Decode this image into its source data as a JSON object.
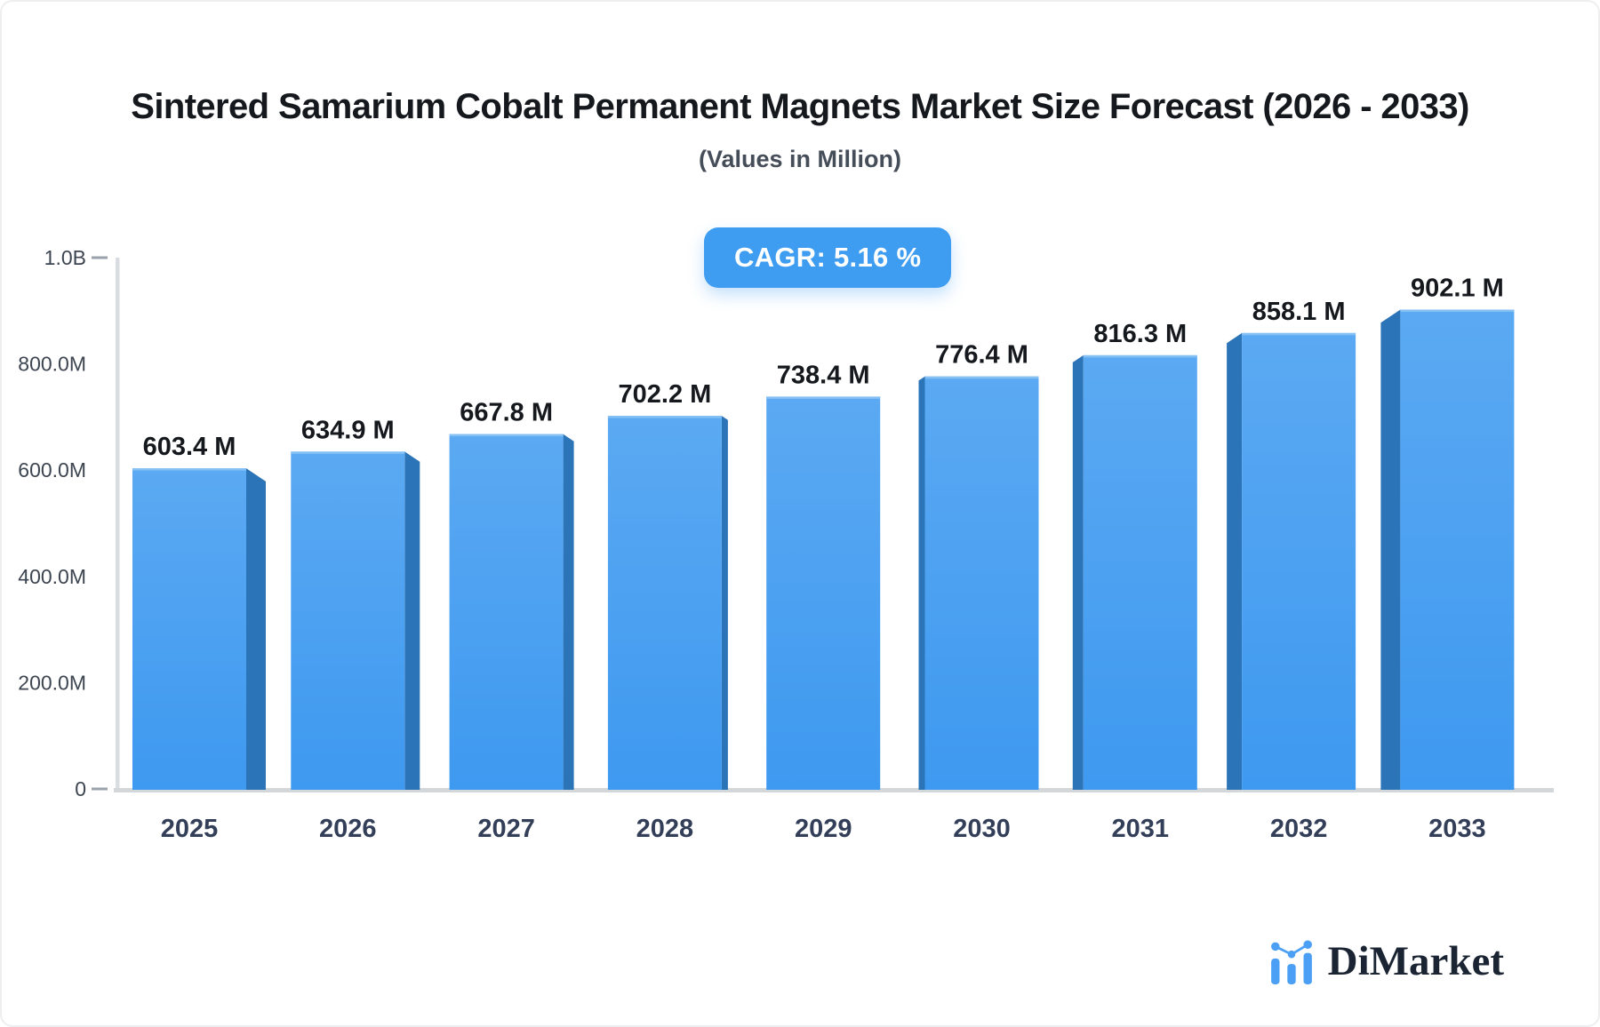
{
  "header": {
    "title": "Sintered Samarium Cobalt Permanent Magnets Market Size Forecast (2026 - 2033)",
    "subtitle": "(Values in Million)"
  },
  "chart_data": {
    "type": "bar",
    "title": "Sintered Samarium Cobalt Permanent Magnets Market Size Forecast (2026 - 2033)",
    "subtitle": "(Values in Million)",
    "cagr_badge": "CAGR: 5.16 %",
    "categories": [
      "2025",
      "2026",
      "2027",
      "2028",
      "2029",
      "2030",
      "2031",
      "2032",
      "2033"
    ],
    "values_millions": [
      603.4,
      634.9,
      667.8,
      702.2,
      738.4,
      776.4,
      816.3,
      858.1,
      902.1
    ],
    "value_labels": [
      "603.4 M",
      "634.9 M",
      "667.8 M",
      "702.2 M",
      "738.4 M",
      "776.4 M",
      "816.3 M",
      "858.1 M",
      "902.1 M"
    ],
    "ylim_millions": [
      0,
      1000
    ],
    "y_axis_ticks": [
      {
        "label": "1.0B",
        "value_millions": 1000,
        "dash": true
      },
      {
        "label": "800.0M",
        "value_millions": 800,
        "dash": false
      },
      {
        "label": "600.0M",
        "value_millions": 600,
        "dash": false
      },
      {
        "label": "400.0M",
        "value_millions": 400,
        "dash": false
      },
      {
        "label": "200.0M",
        "value_millions": 200,
        "dash": false
      },
      {
        "label": "0",
        "value_millions": 0,
        "dash": true
      }
    ],
    "grid": "off",
    "legend": "none",
    "bar_style": "3d-center-perspective"
  },
  "logo": {
    "name": "DiMarket",
    "icon": "dimarket-bars-icon"
  },
  "colors": {
    "bar_front_top": "#5BA9F2",
    "bar_front_bottom": "#3E99F0",
    "bar_top_highlight": "#85C0F5",
    "bar_side": "#2C74B8",
    "badge_bg": "#3E9CF1",
    "badge_text": "#FFFFFF",
    "axis_line": "#D9DCE0",
    "baseline": "#D4D7DA",
    "tick_dash": "#9AA3AD",
    "y_label": "#3D4551",
    "x_label": "#333F58",
    "value_label": "#15181D",
    "title": "#15181D",
    "subtitle": "#454D59",
    "logo_text": "#1B2433",
    "logo_accent": "#4BA0F5",
    "background": "#FFFFFF"
  }
}
